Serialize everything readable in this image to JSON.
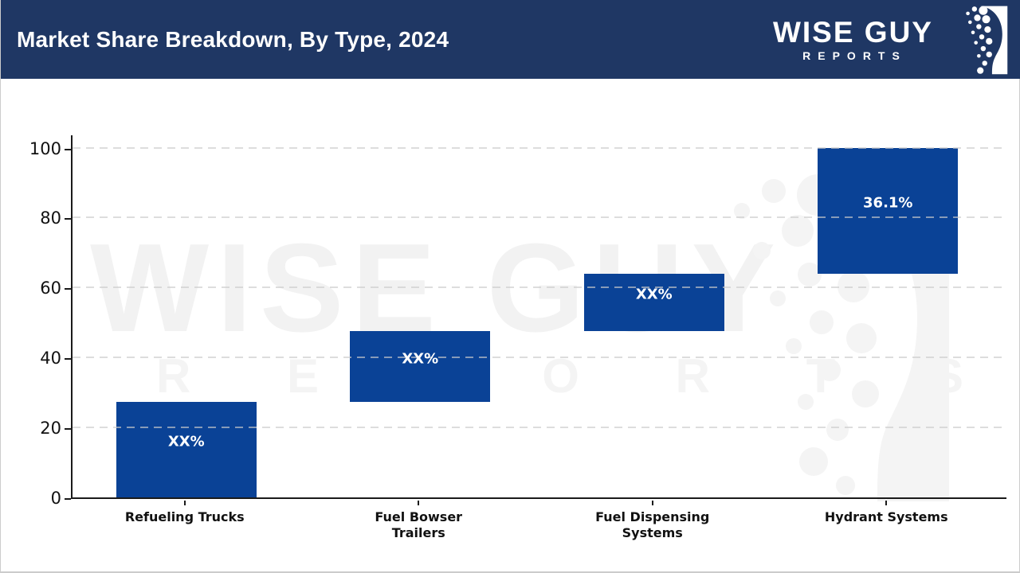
{
  "header": {
    "title": "Market Share Breakdown, By Type, 2024",
    "logo": {
      "line1": "WISE GUY",
      "line2": "REPORTS"
    }
  },
  "watermark": {
    "line1": "WISE GUY",
    "line2": "R E P O R T S"
  },
  "colors": {
    "header_bg": "#1f3764",
    "bar": "#0a4296",
    "bar_label": "#ffffff",
    "gridline": "#d9d9d9",
    "axis": "#1a1a1a",
    "watermark": "#f2f2f2"
  },
  "chart_data": {
    "type": "bar",
    "subtype": "waterfall",
    "title": "Market Share Breakdown, By Type, 2024",
    "xlabel": "",
    "ylabel": "",
    "ylim": [
      0,
      104
    ],
    "yticks": [
      0,
      20,
      40,
      60,
      80,
      100
    ],
    "grid": "horizontal dashed, drawn over bars",
    "legend": "none",
    "bar_color": "#0a4296",
    "categories": [
      "Refueling Trucks",
      "Fuel Bowser Trailers",
      "Fuel Dispensing Systems",
      "Hydrant Systems"
    ],
    "category_lines": [
      [
        "Refueling Trucks"
      ],
      [
        "Fuel Bowser",
        "Trailers"
      ],
      [
        "Fuel Dispensing",
        "Systems"
      ],
      [
        "Hydrant Systems"
      ]
    ],
    "segments": [
      {
        "category": "Refueling Trucks",
        "start": 0,
        "end": 27.2,
        "label": "XX%"
      },
      {
        "category": "Fuel Bowser Trailers",
        "start": 27.2,
        "end": 47.6,
        "label": "XX%"
      },
      {
        "category": "Fuel Dispensing Systems",
        "start": 47.6,
        "end": 63.9,
        "label": "XX%"
      },
      {
        "category": "Hydrant Systems",
        "start": 63.9,
        "end": 100,
        "label": "36.1%"
      }
    ]
  }
}
